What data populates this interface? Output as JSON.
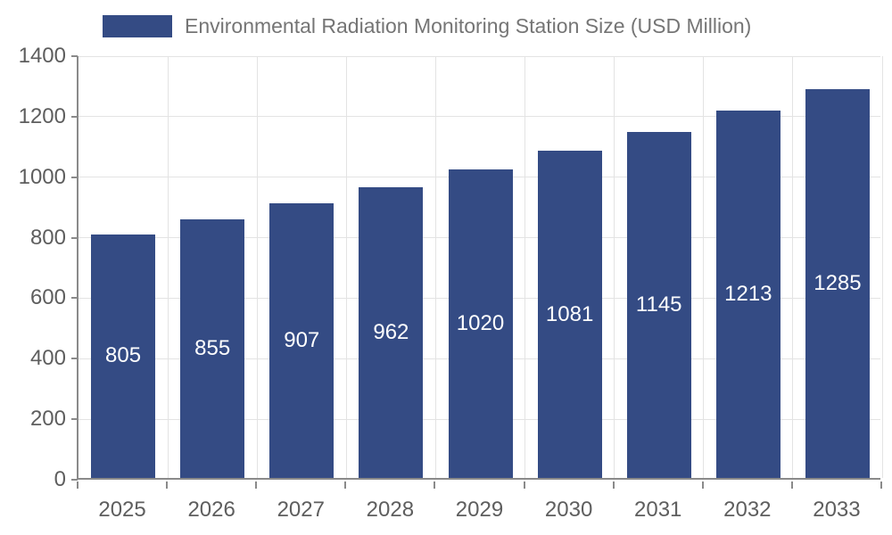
{
  "chart_data": {
    "type": "bar",
    "title": "Environmental Radiation Monitoring Station Size (USD Million)",
    "categories": [
      "2025",
      "2026",
      "2027",
      "2028",
      "2029",
      "2030",
      "2031",
      "2032",
      "2033"
    ],
    "values": [
      805,
      855,
      907,
      962,
      1020,
      1081,
      1145,
      1213,
      1285
    ],
    "xlabel": "",
    "ylabel": "",
    "ylim": [
      0,
      1400
    ],
    "yticks": [
      0,
      200,
      400,
      600,
      800,
      1000,
      1200,
      1400
    ],
    "grid": true,
    "legend_position": "top-left",
    "bar_color": "#344b84",
    "value_label_color": "#ffffff"
  },
  "colors": {
    "background": "#ffffff",
    "grid": "#e3e3e3",
    "axis": "#8a8a8a",
    "tick_label": "#5e5e5e",
    "legend_text": "#757575"
  }
}
